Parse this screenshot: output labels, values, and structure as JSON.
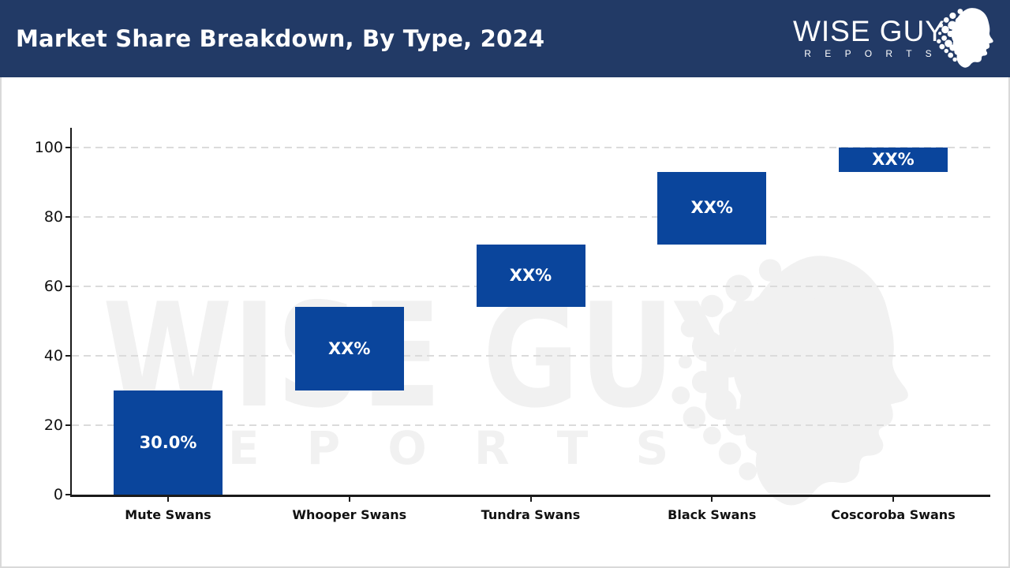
{
  "header": {
    "title": "Market Share Breakdown, By Type, 2024",
    "logo": {
      "brand": "WISE GUY",
      "subbrand": "R E P O R T S"
    }
  },
  "watermark": {
    "brand": "WISE GUY",
    "subbrand": "R E P O R T S"
  },
  "colors": {
    "header_bg": "#223A66",
    "bar": "#0A459C",
    "bar_label_text": "#FFFFFF",
    "grid": "#DBDBDB",
    "axis": "#1A1A1A",
    "tick_text": "#111111",
    "watermark": "#F1F1F1",
    "border": "#D9D9D9"
  },
  "chart_data": {
    "type": "bar",
    "subtype": "waterfall",
    "title": "Market Share Breakdown, By Type, 2024",
    "categories": [
      "Mute Swans",
      "Whooper Swans",
      "Tundra Swans",
      "Black Swans",
      "Coscoroba Swans"
    ],
    "segments": [
      {
        "category": "Mute Swans",
        "start": 0,
        "end": 30,
        "label": "30.0%"
      },
      {
        "category": "Whooper Swans",
        "start": 30,
        "end": 54,
        "label": "XX%"
      },
      {
        "category": "Tundra Swans",
        "start": 54,
        "end": 72,
        "label": "XX%"
      },
      {
        "category": "Black Swans",
        "start": 72,
        "end": 93,
        "label": "XX%"
      },
      {
        "category": "Coscoroba Swans",
        "start": 93,
        "end": 100,
        "label": "XX%"
      }
    ],
    "xlabel": "",
    "ylabel": "",
    "ylim": [
      0,
      100
    ],
    "yticks": [
      0,
      20,
      40,
      60,
      80,
      100
    ],
    "grid": "horizontal dashed",
    "legend_position": "none"
  }
}
